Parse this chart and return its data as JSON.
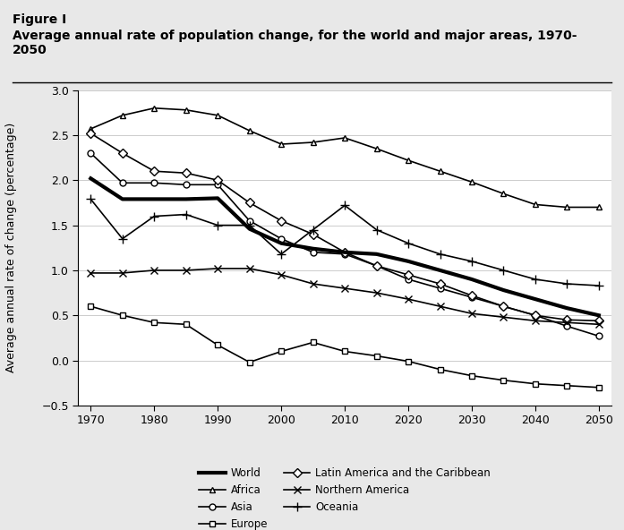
{
  "title_line1": "Figure I",
  "title_line2": "Average annual rate of population change, for the world and major areas, 1970-\n2050",
  "ylabel": "Average annual rate of change (percentage)",
  "years": [
    1970,
    1975,
    1980,
    1985,
    1990,
    1995,
    2000,
    2005,
    2010,
    2015,
    2020,
    2025,
    2030,
    2035,
    2040,
    2045,
    2050
  ],
  "series": {
    "World": [
      2.02,
      1.79,
      1.79,
      1.79,
      1.8,
      1.46,
      1.3,
      1.24,
      1.2,
      1.18,
      1.1,
      1.0,
      0.9,
      0.78,
      0.68,
      0.58,
      0.5
    ],
    "Africa": [
      2.57,
      2.72,
      2.8,
      2.78,
      2.72,
      2.55,
      2.4,
      2.42,
      2.47,
      2.35,
      2.22,
      2.1,
      1.98,
      1.85,
      1.73,
      1.7,
      1.7
    ],
    "Asia": [
      2.3,
      1.97,
      1.97,
      1.95,
      1.95,
      1.55,
      1.35,
      1.2,
      1.18,
      1.05,
      0.9,
      0.8,
      0.7,
      0.6,
      0.5,
      0.38,
      0.27
    ],
    "Europe": [
      0.6,
      0.5,
      0.42,
      0.4,
      0.17,
      -0.02,
      0.1,
      0.2,
      0.1,
      0.05,
      -0.01,
      -0.1,
      -0.17,
      -0.22,
      -0.26,
      -0.28,
      -0.3
    ],
    "Latin America and the Caribbean": [
      2.52,
      2.3,
      2.1,
      2.08,
      2.0,
      1.75,
      1.55,
      1.4,
      1.2,
      1.05,
      0.95,
      0.85,
      0.72,
      0.6,
      0.5,
      0.45,
      0.44
    ],
    "Northern America": [
      0.97,
      0.97,
      1.0,
      1.0,
      1.02,
      1.02,
      0.95,
      0.85,
      0.8,
      0.75,
      0.68,
      0.6,
      0.52,
      0.48,
      0.44,
      0.42,
      0.4
    ],
    "Oceania": [
      1.79,
      1.35,
      1.6,
      1.62,
      1.5,
      1.5,
      1.18,
      1.45,
      1.72,
      1.45,
      1.3,
      1.18,
      1.1,
      1.0,
      0.9,
      0.85,
      0.83
    ]
  },
  "markers": {
    "World": null,
    "Africa": "^",
    "Asia": "o",
    "Europe": "s",
    "Latin America and the Caribbean": "D",
    "Northern America": "x",
    "Oceania": "+"
  },
  "marker_sizes": {
    "World": 0,
    "Africa": 5,
    "Asia": 5,
    "Europe": 5,
    "Latin America and the Caribbean": 5,
    "Northern America": 6,
    "Oceania": 7
  },
  "linewidths": {
    "World": 3.0,
    "Africa": 1.2,
    "Asia": 1.2,
    "Europe": 1.2,
    "Latin America and the Caribbean": 1.2,
    "Northern America": 1.2,
    "Oceania": 1.2
  },
  "ylim": [
    -0.5,
    3.0
  ],
  "yticks": [
    -0.5,
    0.0,
    0.5,
    1.0,
    1.5,
    2.0,
    2.5,
    3.0
  ],
  "xlim": [
    1968,
    2052
  ],
  "xticks": [
    1970,
    1980,
    1990,
    2000,
    2010,
    2020,
    2030,
    2040,
    2050
  ],
  "bg_color": "#e8e8e8",
  "plot_bg_color": "#ffffff",
  "legend_left_col": [
    "World",
    "Asia",
    "Latin America and the Caribbean",
    "Oceania"
  ],
  "legend_right_col": [
    "Africa",
    "Europe",
    "Northern America"
  ]
}
